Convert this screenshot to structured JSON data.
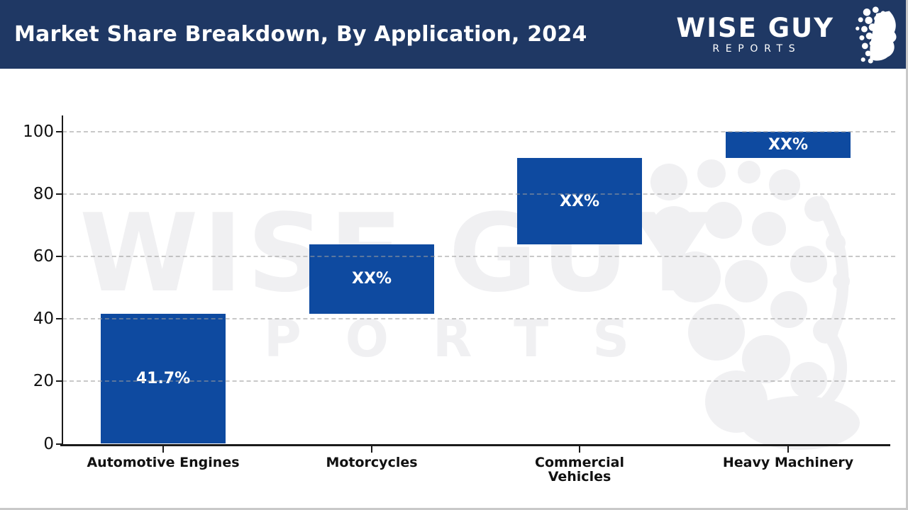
{
  "header": {
    "title": "Market Share Breakdown, By Application, 2024",
    "logo": {
      "line1": "WISE GUY",
      "line2": "REPORTS",
      "icon": "dotted-head-profile"
    }
  },
  "watermark": {
    "line1": "WISE GUY",
    "line2": "PORTS",
    "graphic": "dotted-head-profile"
  },
  "colors": {
    "header_bg": "#1f3864",
    "bar_blue": "#0e4aa0",
    "axis": "#1a1a1a",
    "gridline": "rgba(155,155,155,0.55)",
    "watermark": "#f0f0f2",
    "bar_label": "#ffffff"
  },
  "chart_data": {
    "type": "bar",
    "subtype": "floating-waterfall",
    "title": "Market Share Breakdown, By Application, 2024",
    "xlabel": "",
    "ylabel": "",
    "ylim": [
      0,
      100
    ],
    "yticks": [
      0,
      20,
      40,
      60,
      80,
      100
    ],
    "grid": "horizontal-dashed-over-bars",
    "legend": "none",
    "categories": [
      "Automotive Engines",
      "Motorcycles",
      "Commercial Vehicles",
      "Heavy Machinery"
    ],
    "tick_labels": [
      "Automotive Engines",
      "Motorcycles",
      "Commercial\nVehicles",
      "Heavy Machinery"
    ],
    "series": [
      {
        "name": "Market Share",
        "segments": [
          {
            "category": "Automotive Engines",
            "start": 0,
            "end": 41.7,
            "value": 41.7,
            "label": "41.7%"
          },
          {
            "category": "Motorcycles",
            "start": 41.7,
            "end": 63.9,
            "value": 22.2,
            "label": "XX%"
          },
          {
            "category": "Commercial Vehicles",
            "start": 63.9,
            "end": 91.4,
            "value": 27.5,
            "label": "XX%"
          },
          {
            "category": "Heavy Machinery",
            "start": 91.4,
            "end": 100.0,
            "value": 8.6,
            "label": "XX%"
          }
        ]
      }
    ]
  }
}
